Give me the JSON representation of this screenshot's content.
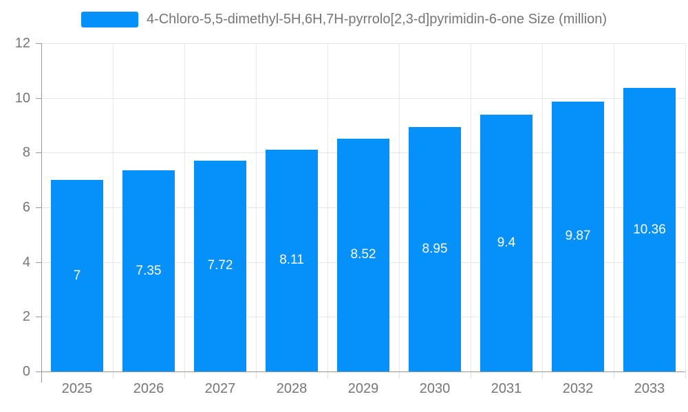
{
  "chart_data": {
    "type": "bar",
    "legend": "4-Chloro-5,5-dimethyl-5H,6H,7H-pyrrolo[2,3-d]pyrimidin-6-one Size (million)",
    "legend_position": "top",
    "categories": [
      "2025",
      "2026",
      "2027",
      "2028",
      "2029",
      "2030",
      "2031",
      "2032",
      "2033"
    ],
    "values": [
      7,
      7.35,
      7.72,
      8.11,
      8.52,
      8.95,
      9.4,
      9.87,
      10.36
    ],
    "value_labels": [
      "7",
      "7.35",
      "7.72",
      "8.11",
      "8.52",
      "8.95",
      "9.4",
      "9.87",
      "10.36"
    ],
    "xlabel": "",
    "ylabel": "",
    "ylim": [
      0,
      12
    ],
    "yticks": [
      0,
      2,
      4,
      6,
      8,
      10,
      12
    ],
    "grid": true,
    "colors": {
      "bar": "#0691fa",
      "bar_value_text": "#ffffff",
      "axis_text": "#757575",
      "grid_line": "#e6e6e6",
      "axis_line": "#999999"
    }
  }
}
